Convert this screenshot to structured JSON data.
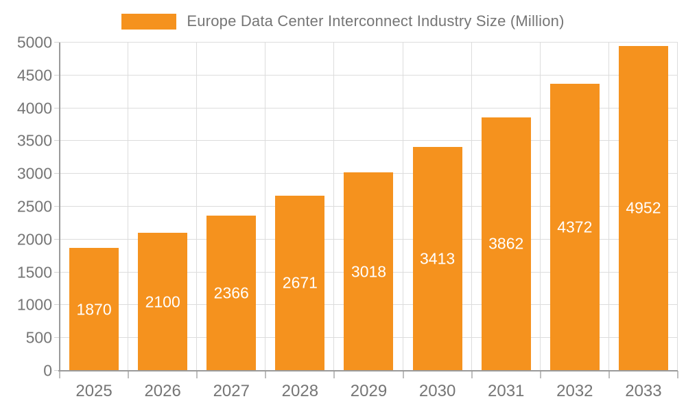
{
  "chart_data": {
    "type": "bar",
    "title": "Europe Data Center Interconnect Industry Size (Million)",
    "legend": {
      "label": "Europe Data Center Interconnect Industry Size (Million)",
      "position": "top"
    },
    "categories": [
      "2025",
      "2026",
      "2027",
      "2028",
      "2029",
      "2030",
      "2031",
      "2032",
      "2033"
    ],
    "values": [
      1870,
      2100,
      2366,
      2671,
      3018,
      3413,
      3862,
      4372,
      4952
    ],
    "value_labels_shown": true,
    "xlabel": "",
    "ylabel": "",
    "ylim": [
      0,
      5000
    ],
    "yticks": [
      0,
      500,
      1000,
      1500,
      2000,
      2500,
      3000,
      3500,
      4000,
      4500,
      5000
    ],
    "grid": true,
    "colors": {
      "bar": "#F5921E",
      "value_label": "#FFFFFF",
      "axis_text": "#757575",
      "legend_text": "#757575",
      "gridline": "#DCDCDC",
      "axis_line": "#9A9A9A",
      "background": "#FFFFFF"
    }
  }
}
